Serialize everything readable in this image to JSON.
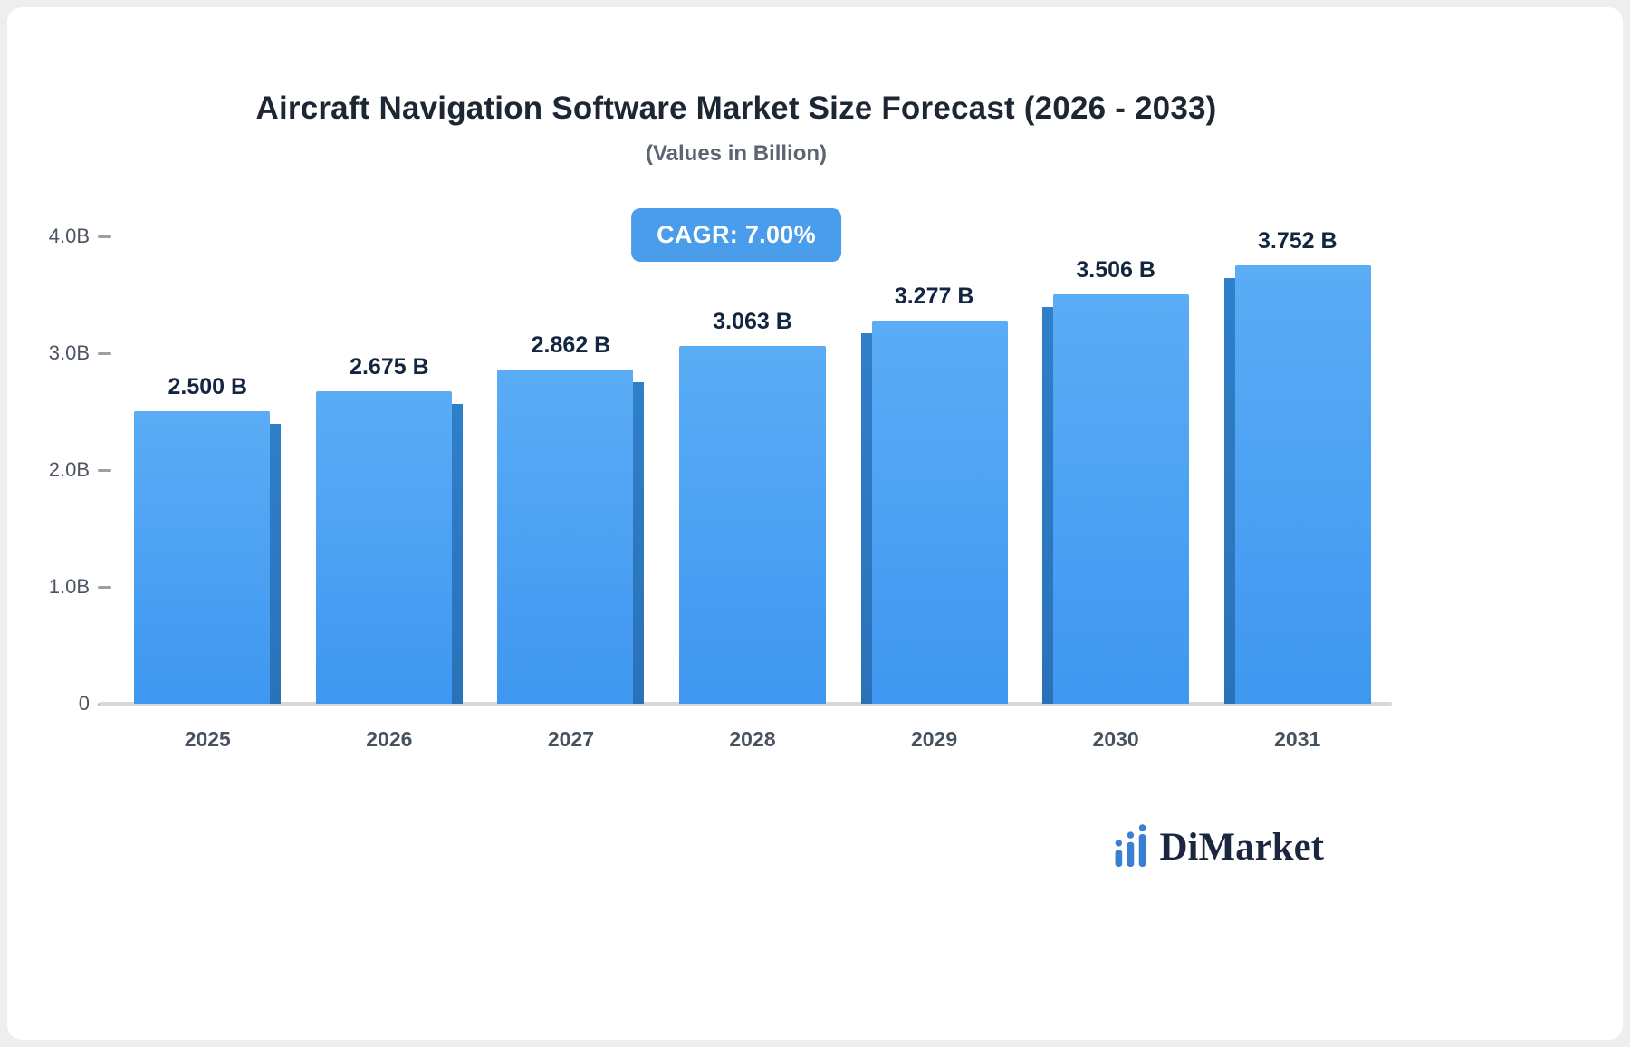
{
  "header": {
    "title": "Aircraft Navigation Software Market Size Forecast (2026 - 2033)",
    "subtitle": "(Values in Billion)"
  },
  "badge": {
    "label": "CAGR: 7.00%"
  },
  "chart_data": {
    "type": "bar",
    "title": "Aircraft Navigation Software Market Size Forecast (2026 - 2033)",
    "subtitle": "(Values in Billion)",
    "categories": [
      "2025",
      "2026",
      "2027",
      "2028",
      "2029",
      "2030",
      "2031"
    ],
    "values": [
      2.5,
      2.675,
      2.862,
      3.063,
      3.277,
      3.506,
      3.752
    ],
    "value_labels": [
      "2.500 B",
      "2.675 B",
      "2.862 B",
      "3.063 B",
      "3.277 B",
      "3.506 B",
      "3.752 B"
    ],
    "xlabel": "",
    "ylabel": "",
    "ylim": [
      0,
      4.0
    ],
    "ytick_values": [
      4.0,
      3.0,
      2.0,
      1.0,
      0
    ],
    "ytick_labels": [
      "4.0B",
      "3.0B",
      "2.0B",
      "1.0B",
      "0"
    ],
    "grid": false,
    "legend": false,
    "annotations": [
      "CAGR: 7.00%"
    ]
  },
  "branding": {
    "name": "DiMarket",
    "icon": "bar-chart-logo-icon"
  },
  "colors": {
    "bar_face_top": "#5aacf5",
    "bar_face_bottom": "#3f97f0",
    "bar_side_top": "#2f7fc9",
    "bar_side_bottom": "#2a72b8",
    "badge_bg": "#4a9deb",
    "title_color": "#1d2633",
    "logo_blue": "#3a80d2"
  }
}
